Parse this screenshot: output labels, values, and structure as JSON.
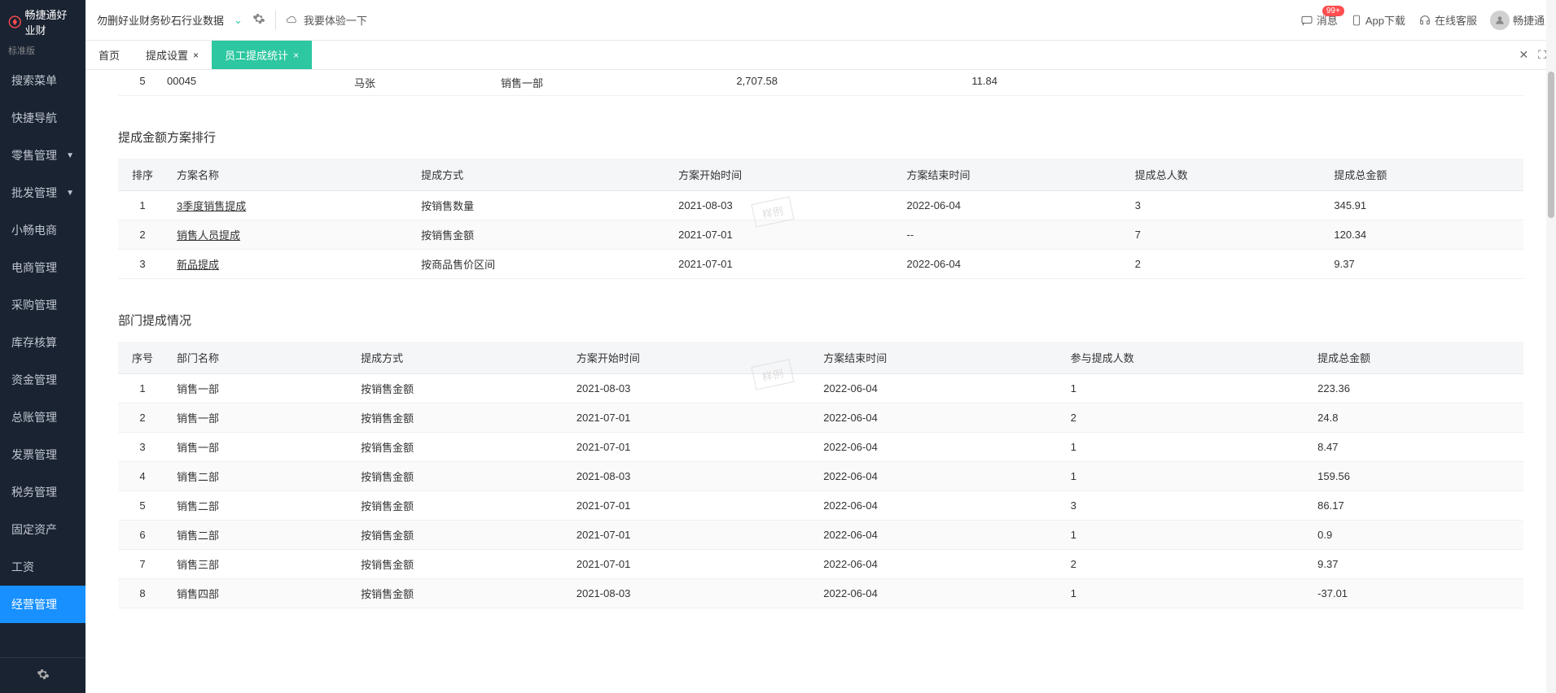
{
  "brand": {
    "name": "畅捷通好业财",
    "edition": "标准版"
  },
  "header": {
    "org": "勿删好业财务砂石行业数据",
    "experience": "我要体验一下",
    "actions": {
      "message": "消息",
      "badge": "99+",
      "app": "App下载",
      "service": "在线客服",
      "user": "畅捷通"
    }
  },
  "sidebar": {
    "items": [
      {
        "label": "搜索菜单",
        "arrow": false
      },
      {
        "label": "快捷导航",
        "arrow": false
      },
      {
        "label": "零售管理",
        "arrow": true
      },
      {
        "label": "批发管理",
        "arrow": true
      },
      {
        "label": "小畅电商",
        "arrow": false
      },
      {
        "label": "电商管理",
        "arrow": false
      },
      {
        "label": "采购管理",
        "arrow": false
      },
      {
        "label": "库存核算",
        "arrow": false
      },
      {
        "label": "资金管理",
        "arrow": false
      },
      {
        "label": "总账管理",
        "arrow": false
      },
      {
        "label": "发票管理",
        "arrow": false
      },
      {
        "label": "税务管理",
        "arrow": false
      },
      {
        "label": "固定资产",
        "arrow": false
      },
      {
        "label": "工资",
        "arrow": false
      },
      {
        "label": "经营管理",
        "arrow": false,
        "active": true
      }
    ]
  },
  "tabs": [
    {
      "label": "首页",
      "closable": false
    },
    {
      "label": "提成设置",
      "closable": true
    },
    {
      "label": "员工提成统计",
      "closable": true,
      "active": true
    }
  ],
  "partialRow": {
    "seq": "5",
    "code": "00045",
    "name": "马张",
    "dept": "销售一部",
    "v1": "2,707.58",
    "v2": "11.84"
  },
  "section1": {
    "title": "提成金额方案排行",
    "headers": [
      "排序",
      "方案名称",
      "提成方式",
      "方案开始时间",
      "方案结束时间",
      "提成总人数",
      "提成总金额"
    ],
    "rows": [
      [
        "1",
        "3季度销售提成",
        "按销售数量",
        "2021-08-03",
        "2022-06-04",
        "3",
        "345.91"
      ],
      [
        "2",
        "销售人员提成",
        "按销售金额",
        "2021-07-01",
        "--",
        "7",
        "120.34"
      ],
      [
        "3",
        "新品提成",
        "按商品售价区间",
        "2021-07-01",
        "2022-06-04",
        "2",
        "9.37"
      ]
    ]
  },
  "section2": {
    "title": "部门提成情况",
    "headers": [
      "序号",
      "部门名称",
      "提成方式",
      "方案开始时间",
      "方案结束时间",
      "参与提成人数",
      "提成总金额"
    ],
    "rows": [
      [
        "1",
        "销售一部",
        "按销售金额",
        "2021-08-03",
        "2022-06-04",
        "1",
        "223.36"
      ],
      [
        "2",
        "销售一部",
        "按销售金额",
        "2021-07-01",
        "2022-06-04",
        "2",
        "24.8"
      ],
      [
        "3",
        "销售一部",
        "按销售金额",
        "2021-07-01",
        "2022-06-04",
        "1",
        "8.47"
      ],
      [
        "4",
        "销售二部",
        "按销售金额",
        "2021-08-03",
        "2022-06-04",
        "1",
        "159.56"
      ],
      [
        "5",
        "销售二部",
        "按销售金额",
        "2021-07-01",
        "2022-06-04",
        "3",
        "86.17"
      ],
      [
        "6",
        "销售二部",
        "按销售金额",
        "2021-07-01",
        "2022-06-04",
        "1",
        "0.9"
      ],
      [
        "7",
        "销售三部",
        "按销售金额",
        "2021-07-01",
        "2022-06-04",
        "2",
        "9.37"
      ],
      [
        "8",
        "销售四部",
        "按销售金额",
        "2021-08-03",
        "2022-06-04",
        "1",
        "-37.01"
      ]
    ]
  },
  "watermark": "样例",
  "colors": {
    "sidebar_bg": "#1a2332",
    "tab_active": "#2dc7a1",
    "menu_active": "#1890ff",
    "badge": "#ff4d4f",
    "table_header_bg": "#f5f6f8",
    "row_alt_bg": "#fafafa",
    "border": "#e8e8e8"
  }
}
